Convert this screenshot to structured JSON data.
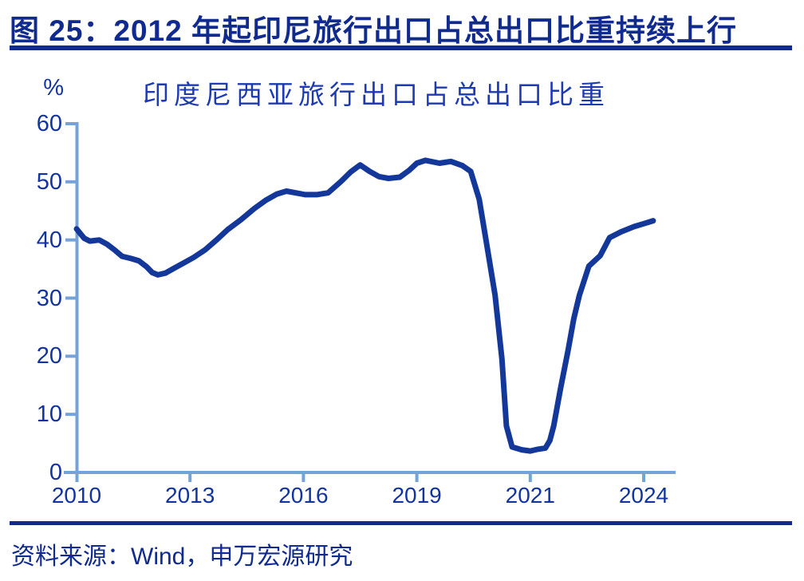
{
  "header": {
    "title": "图 25：2012 年起印尼旅行出口占总出口比重持续上行"
  },
  "footer": {
    "source": "资料来源：Wind，申万宏源研究"
  },
  "colors": {
    "figure_navy": "#112a8d",
    "chart_title_blue": "#1d3ab3",
    "axis_label_blue": "#13339e",
    "axis_line_blue": "#74a3d9",
    "line_navy": "#14389a"
  },
  "chart_data": {
    "type": "line",
    "title": "印度尼西亚旅行出口占总出口比重",
    "unit_label": "%",
    "xlabel": "",
    "ylabel": "%",
    "ylim": [
      0,
      60
    ],
    "y_ticks": [
      0,
      10,
      20,
      30,
      40,
      50,
      60
    ],
    "x_tick_labels": [
      "2010",
      "2013",
      "2016",
      "2019",
      "2021",
      "2024"
    ],
    "x_tick_years": [
      2010,
      2013,
      2016,
      2019,
      2021,
      2024
    ],
    "grid": false,
    "legend_position": "none",
    "series": [
      {
        "name": "印度尼西亚旅行出口占总出口比重",
        "points": [
          [
            2010.0,
            41.9
          ],
          [
            2010.2,
            40.3
          ],
          [
            2010.35,
            39.8
          ],
          [
            2010.6,
            40.0
          ],
          [
            2010.8,
            39.3
          ],
          [
            2011.0,
            38.3
          ],
          [
            2011.2,
            37.2
          ],
          [
            2011.45,
            36.8
          ],
          [
            2011.65,
            36.4
          ],
          [
            2011.85,
            35.4
          ],
          [
            2012.0,
            34.4
          ],
          [
            2012.15,
            34.0
          ],
          [
            2012.35,
            34.3
          ],
          [
            2012.6,
            35.2
          ],
          [
            2012.85,
            36.1
          ],
          [
            2013.1,
            37.0
          ],
          [
            2013.4,
            38.3
          ],
          [
            2013.7,
            40.0
          ],
          [
            2014.0,
            41.8
          ],
          [
            2014.35,
            43.5
          ],
          [
            2014.7,
            45.4
          ],
          [
            2015.0,
            46.8
          ],
          [
            2015.3,
            47.9
          ],
          [
            2015.55,
            48.4
          ],
          [
            2015.8,
            48.1
          ],
          [
            2016.05,
            47.8
          ],
          [
            2016.35,
            47.8
          ],
          [
            2016.65,
            48.1
          ],
          [
            2017.0,
            50.1
          ],
          [
            2017.25,
            51.7
          ],
          [
            2017.5,
            52.9
          ],
          [
            2017.75,
            51.8
          ],
          [
            2018.0,
            50.9
          ],
          [
            2018.25,
            50.6
          ],
          [
            2018.55,
            50.8
          ],
          [
            2018.8,
            52.0
          ],
          [
            2019.0,
            53.2
          ],
          [
            2019.15,
            53.7
          ],
          [
            2019.4,
            53.2
          ],
          [
            2019.6,
            53.5
          ],
          [
            2019.8,
            52.8
          ],
          [
            2019.95,
            51.8
          ],
          [
            2020.1,
            47.0
          ],
          [
            2020.22,
            40.0
          ],
          [
            2020.38,
            30.5
          ],
          [
            2020.5,
            19.5
          ],
          [
            2020.58,
            8.0
          ],
          [
            2020.68,
            4.4
          ],
          [
            2020.85,
            3.9
          ],
          [
            2021.0,
            3.7
          ],
          [
            2021.2,
            4.0
          ],
          [
            2021.4,
            4.2
          ],
          [
            2021.52,
            5.5
          ],
          [
            2021.62,
            8.0
          ],
          [
            2021.8,
            14.4
          ],
          [
            2022.0,
            21.0
          ],
          [
            2022.15,
            26.4
          ],
          [
            2022.3,
            30.5
          ],
          [
            2022.55,
            35.5
          ],
          [
            2022.85,
            37.3
          ],
          [
            2023.1,
            40.4
          ],
          [
            2023.4,
            41.4
          ],
          [
            2023.75,
            42.3
          ],
          [
            2024.0,
            42.8
          ],
          [
            2024.25,
            43.3
          ]
        ]
      }
    ]
  }
}
